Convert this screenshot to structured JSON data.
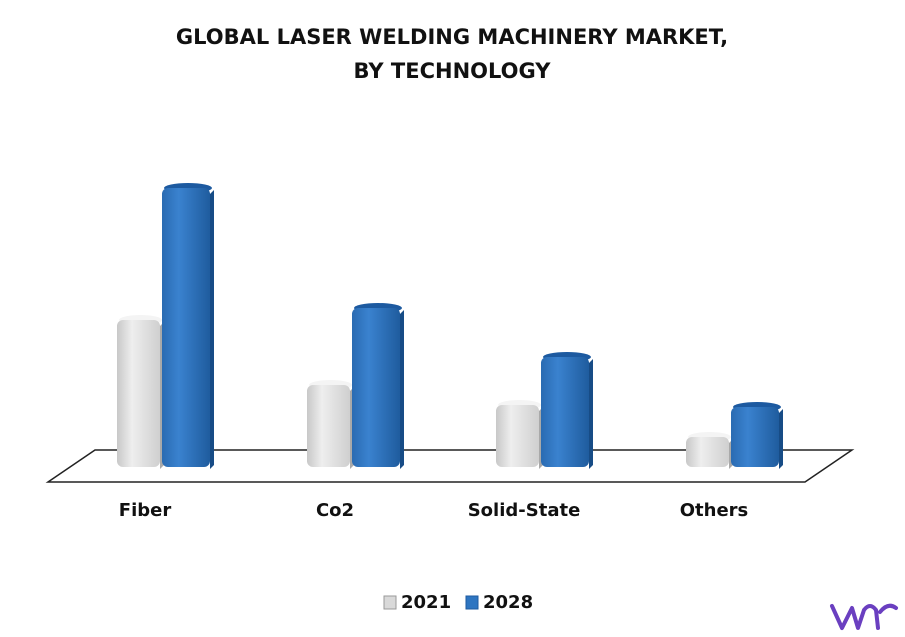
{
  "chart_data": {
    "type": "bar3d",
    "title": [
      "GLOBAL LASER WELDING MACHINERY MARKET,",
      "BY TECHNOLOGY"
    ],
    "categories": [
      "Fiber",
      "Co2",
      "Solid-State",
      "Others"
    ],
    "series": [
      {
        "name": "2021",
        "color": "#d9d9d9",
        "values": [
          147,
          82,
          62,
          30
        ]
      },
      {
        "name": "2028",
        "color": "#2e75c1",
        "values": [
          279,
          159,
          110,
          60
        ]
      }
    ]
  }
}
